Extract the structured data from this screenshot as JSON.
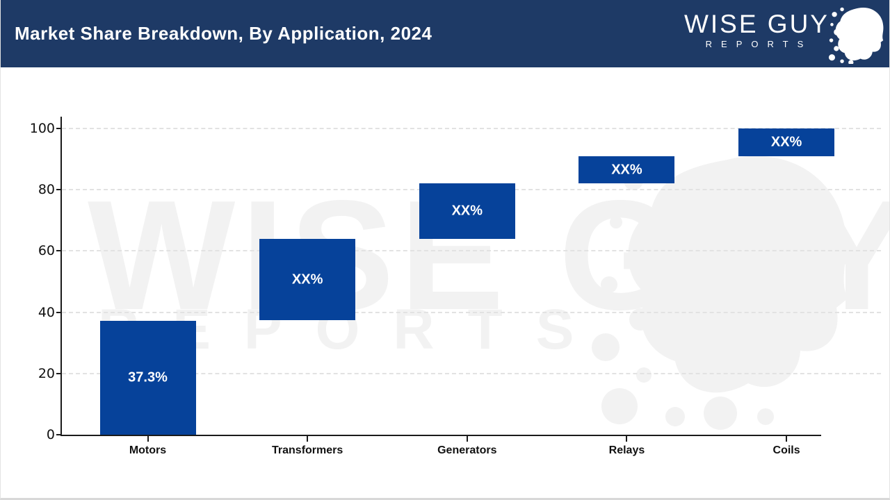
{
  "header": {
    "title": "Market Share Breakdown, By Application, 2024",
    "brand": {
      "line1": "WISE GUY",
      "line2": "REPORTS"
    }
  },
  "watermark": {
    "line1": "WISE GUY",
    "line2": "REPORTS"
  },
  "chart_data": {
    "type": "bar",
    "subtype": "floating-waterfall",
    "title": "Market Share Breakdown, By Application, 2024",
    "categories": [
      "Motors",
      "Transformers",
      "Generators",
      "Relays",
      "Coils"
    ],
    "series": [
      {
        "name": "Market share %",
        "start": [
          0,
          37.3,
          64,
          82,
          91
        ],
        "end": [
          37.3,
          64,
          82,
          91,
          100
        ]
      }
    ],
    "bar_labels": [
      "37.3%",
      "XX%",
      "XX%",
      "XX%",
      "XX%"
    ],
    "ylim": [
      0,
      105
    ],
    "yticks": [
      0,
      20,
      40,
      60,
      80,
      100
    ],
    "grid": "horizontal-dashed",
    "legend": "none",
    "colors": {
      "bar": "#06429a",
      "bar_label": "#ffffff",
      "header_bg": "#1e3a66",
      "grid": "#e2e2e2",
      "axis": "#1a1a1a",
      "watermark": "#f2f2f2"
    }
  }
}
